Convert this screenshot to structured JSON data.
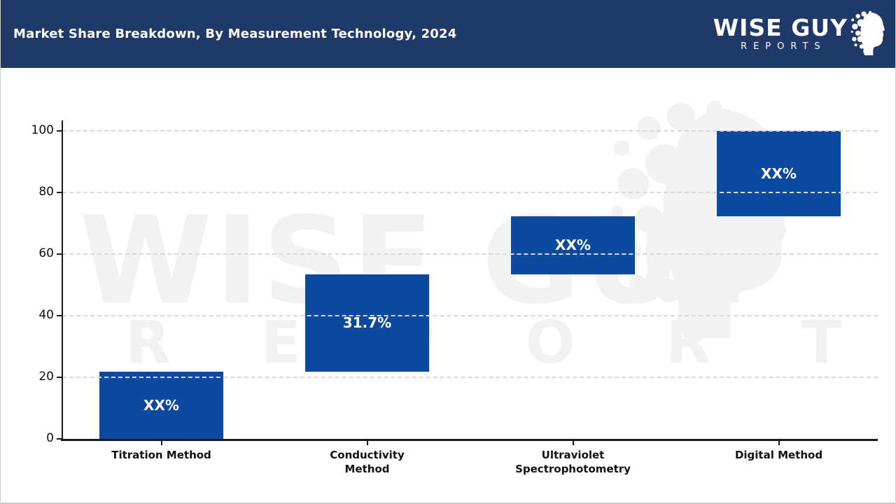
{
  "header": {
    "title": "Market Share Breakdown, By Measurement Technology, 2024",
    "bg_color": "#1f3a68",
    "logo": {
      "line1": "WISE GUY",
      "line2": "REPORTS"
    }
  },
  "watermark": {
    "line1": "WISE GUY",
    "line2": "R E P O R T S"
  },
  "chart_data": {
    "type": "bar",
    "subtype": "waterfall-floating-bars",
    "title": "Market Share Breakdown, By Measurement Technology, 2024",
    "categories": [
      "Titration Method",
      "Conductivity Method",
      "Ultraviolet Spectrophotometry",
      "Digital Method"
    ],
    "category_lines": [
      [
        "Titration Method"
      ],
      [
        "Conductivity",
        "Method"
      ],
      [
        "Ultraviolet",
        "Spectrophotometry"
      ],
      [
        "Digital Method"
      ]
    ],
    "segments": [
      {
        "category": "Titration Method",
        "start": 0,
        "end": 21.8,
        "value": 21.8,
        "label": "XX%"
      },
      {
        "category": "Conductivity Method",
        "start": 21.8,
        "end": 53.5,
        "value": 31.7,
        "label": "31.7%"
      },
      {
        "category": "Ultraviolet Spectrophotometry",
        "start": 53.5,
        "end": 72.2,
        "value": 18.7,
        "label": "XX%"
      },
      {
        "category": "Digital Method",
        "start": 72.2,
        "end": 100,
        "value": 27.8,
        "label": "XX%"
      }
    ],
    "xlabel": "",
    "ylabel": "",
    "yticks": [
      0,
      20,
      40,
      60,
      80,
      100
    ],
    "ylim": [
      0,
      100
    ],
    "grid": "horizontal-dashed, drawn above bars",
    "legend": "none",
    "bar_color": "#0d4a9f",
    "bar_label_color": "#ffffff",
    "grid_color": "#d9d9d9",
    "axis_color": "#1a1a1a"
  }
}
